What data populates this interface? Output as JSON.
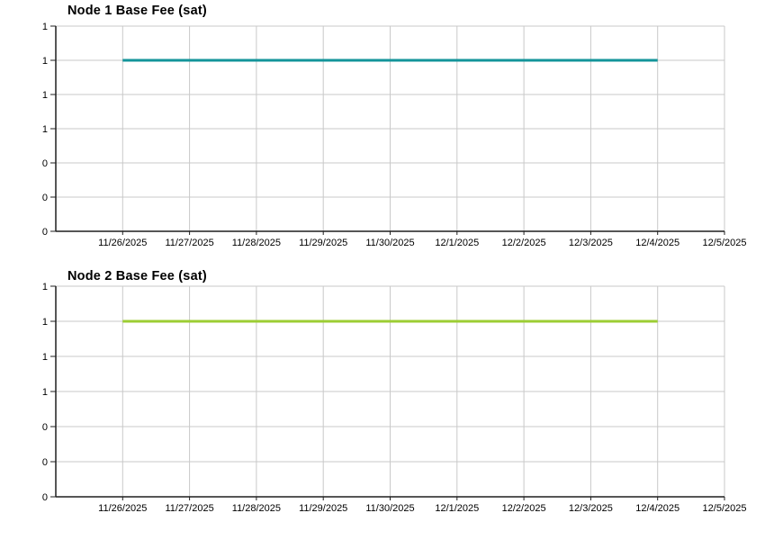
{
  "page": {
    "background": "#ffffff",
    "grid_color": "#c9c9c9",
    "axis_color": "#1f1f1f",
    "tick_label_color": "#000000"
  },
  "chart_data": [
    {
      "type": "line",
      "title": "Node 1 Base Fee (sat)",
      "xlabel": "",
      "ylabel": "",
      "grid": true,
      "legend": "none",
      "ylim": [
        0,
        1.2
      ],
      "y_ticks": [
        {
          "value": 1.2,
          "label": "1"
        },
        {
          "value": 1.0,
          "label": "1"
        },
        {
          "value": 0.8,
          "label": "1"
        },
        {
          "value": 0.6,
          "label": "1"
        },
        {
          "value": 0.4,
          "label": "0"
        },
        {
          "value": 0.2,
          "label": "0"
        },
        {
          "value": 0.0,
          "label": "0"
        }
      ],
      "x_tick_labels": [
        "11/26/2025",
        "11/27/2025",
        "11/28/2025",
        "11/29/2025",
        "11/30/2025",
        "12/1/2025",
        "12/2/2025",
        "12/3/2025",
        "12/4/2025",
        "12/5/2025"
      ],
      "series": [
        {
          "name": "Node 1 base fee",
          "color": "#13949a",
          "line_width": 3,
          "points": [
            {
              "date": "11/26/2025",
              "value": 1
            },
            {
              "date": "11/27/2025",
              "value": 1
            },
            {
              "date": "11/28/2025",
              "value": 1
            },
            {
              "date": "11/29/2025",
              "value": 1
            },
            {
              "date": "11/30/2025",
              "value": 1
            },
            {
              "date": "12/1/2025",
              "value": 1
            },
            {
              "date": "12/2/2025",
              "value": 1
            },
            {
              "date": "12/3/2025",
              "value": 1
            },
            {
              "date": "12/4/2025",
              "value": 1
            }
          ]
        }
      ]
    },
    {
      "type": "line",
      "title": "Node 2 Base Fee (sat)",
      "xlabel": "",
      "ylabel": "",
      "grid": true,
      "legend": "none",
      "ylim": [
        0,
        1.2
      ],
      "y_ticks": [
        {
          "value": 1.2,
          "label": "1"
        },
        {
          "value": 1.0,
          "label": "1"
        },
        {
          "value": 0.8,
          "label": "1"
        },
        {
          "value": 0.6,
          "label": "1"
        },
        {
          "value": 0.4,
          "label": "0"
        },
        {
          "value": 0.2,
          "label": "0"
        },
        {
          "value": 0.0,
          "label": "0"
        }
      ],
      "x_tick_labels": [
        "11/26/2025",
        "11/27/2025",
        "11/28/2025",
        "11/29/2025",
        "11/30/2025",
        "12/1/2025",
        "12/2/2025",
        "12/3/2025",
        "12/4/2025",
        "12/5/2025"
      ],
      "series": [
        {
          "name": "Node 2 base fee",
          "color": "#9ccd33",
          "line_width": 3,
          "points": [
            {
              "date": "11/26/2025",
              "value": 1
            },
            {
              "date": "11/27/2025",
              "value": 1
            },
            {
              "date": "11/28/2025",
              "value": 1
            },
            {
              "date": "11/29/2025",
              "value": 1
            },
            {
              "date": "11/30/2025",
              "value": 1
            },
            {
              "date": "12/1/2025",
              "value": 1
            },
            {
              "date": "12/2/2025",
              "value": 1
            },
            {
              "date": "12/3/2025",
              "value": 1
            },
            {
              "date": "12/4/2025",
              "value": 1
            }
          ]
        }
      ]
    }
  ]
}
